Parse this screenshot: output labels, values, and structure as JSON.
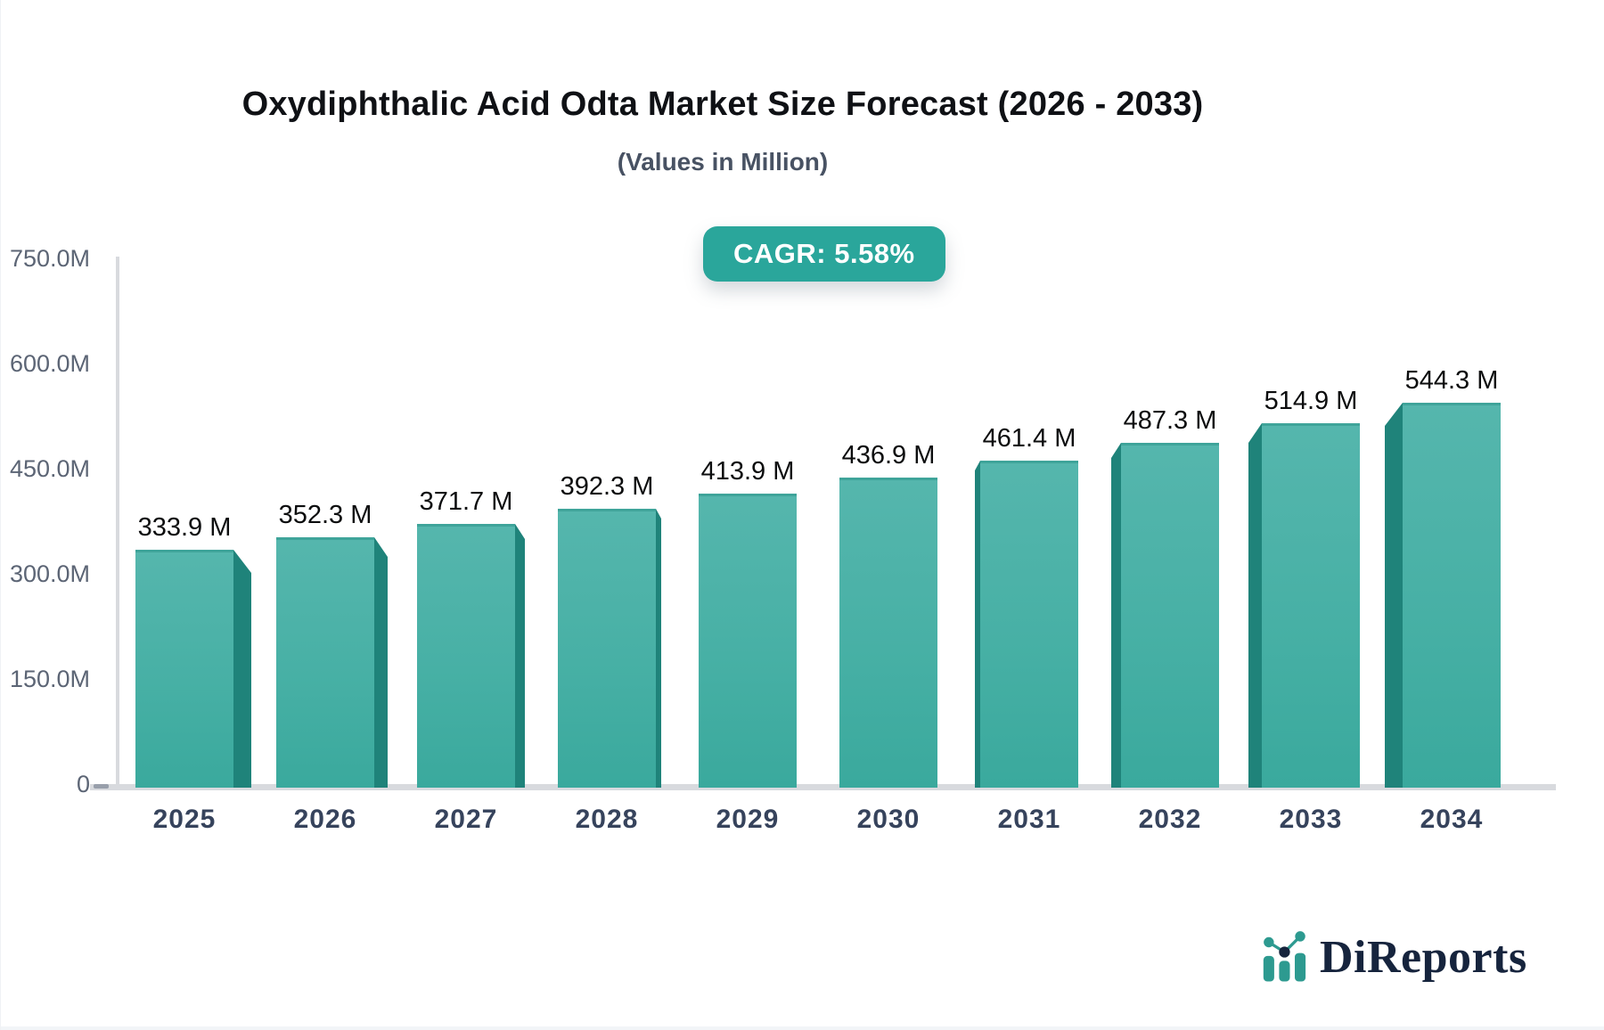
{
  "header": {
    "title": "Oxydiphthalic Acid Odta Market Size Forecast (2026 - 2033)",
    "subtitle": "(Values in Million)",
    "cagr_label": "CAGR: 5.58%"
  },
  "colors": {
    "accent_teal": "#2aa69b",
    "bar_face_top": "#55b6ad",
    "bar_face_bottom": "#3aa99d",
    "bar_side_dark": "#1f837a",
    "axis_line": "#d8dade",
    "tick_text": "#5c6575",
    "xlabel_text": "#36435c",
    "value_text": "#0c0d0e",
    "logo_navy": "#16243d",
    "logo_teal": "#2d9a90"
  },
  "chart_data": {
    "type": "bar",
    "title": "Oxydiphthalic Acid Odta Market Size Forecast (2026 - 2033)",
    "subtitle": "(Values in Million)",
    "unit": "Million",
    "cagr_percent": 5.58,
    "categories": [
      "2025",
      "2026",
      "2027",
      "2028",
      "2029",
      "2030",
      "2031",
      "2032",
      "2033",
      "2034"
    ],
    "values": [
      333.9,
      352.3,
      371.7,
      392.3,
      413.9,
      436.9,
      461.4,
      487.3,
      514.9,
      544.3
    ],
    "value_labels": [
      "333.9 M",
      "352.3 M",
      "371.7 M",
      "392.3 M",
      "413.9 M",
      "436.9 M",
      "461.4 M",
      "487.3 M",
      "514.9 M",
      "544.3 M"
    ],
    "ytick_labels": [
      "750.0M",
      "600.0M",
      "450.0M",
      "300.0M",
      "150.0M",
      "0"
    ],
    "ytick_values": [
      750,
      600,
      450,
      300,
      150,
      0
    ],
    "ylim": [
      0,
      750
    ],
    "grid": false,
    "legend": null,
    "bar_style": "3d-perspective"
  },
  "logo": {
    "text": "DiReports",
    "icon": "mini-bar-line-chart-icon"
  }
}
